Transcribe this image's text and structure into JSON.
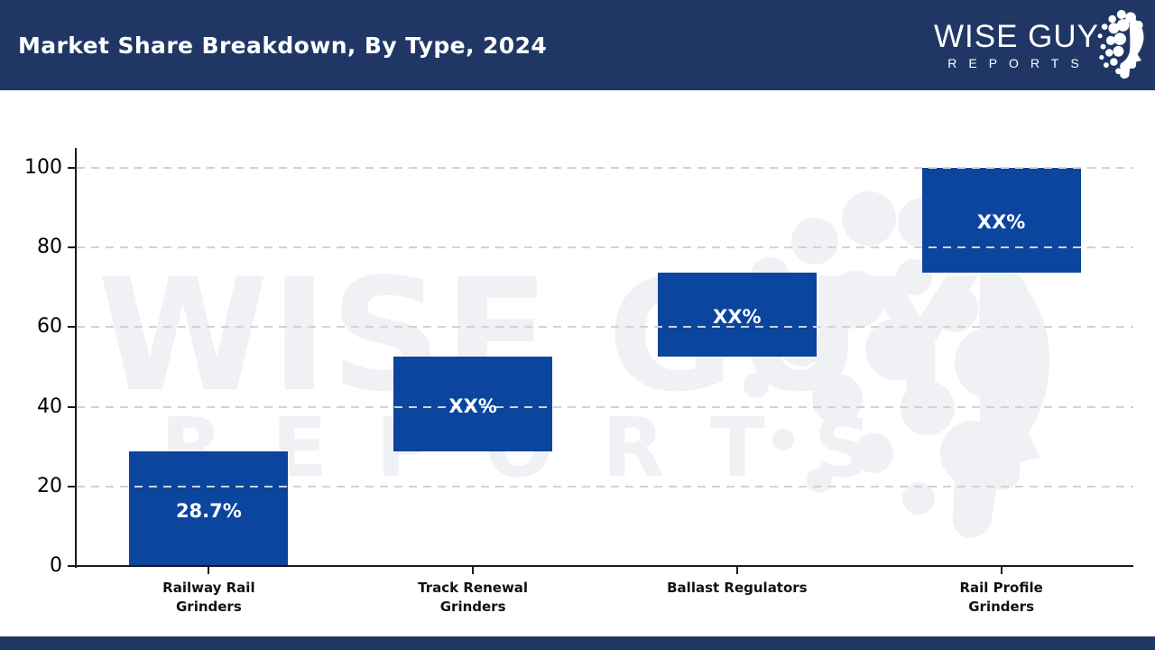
{
  "header": {
    "title": "Market Share Breakdown, By Type, 2024",
    "logo": {
      "primary": "WISE GUY",
      "secondary": "REPORTS"
    }
  },
  "watermark": {
    "primary": "WISE GUY",
    "secondary": "REPORTS"
  },
  "colors": {
    "header_bg": "#203766",
    "footer_bg": "#203766",
    "bar_fill": "#0b459e",
    "bar_label_text": "#ffffff",
    "title_text": "#ffffff",
    "axis_line": "#1a1a1a",
    "tick_label_text": "#000000",
    "gridline": "#d2d2d2",
    "watermark": "#f0f1f4"
  },
  "chart_data": {
    "type": "bar",
    "variant": "waterfall",
    "title": "Market Share Breakdown, By Type, 2024",
    "categories": [
      [
        "Railway Rail",
        "Grinders"
      ],
      [
        "Track Renewal",
        "Grinders"
      ],
      [
        "Ballast Regulators"
      ],
      [
        "Rail Profile",
        "Grinders"
      ]
    ],
    "bars": [
      {
        "category": "Railway Rail Grinders",
        "start": 0,
        "end": 28.7,
        "label": "28.7%"
      },
      {
        "category": "Track Renewal Grinders",
        "start": 28.7,
        "end": 52.5,
        "label": "XX%"
      },
      {
        "category": "Ballast Regulators",
        "start": 52.5,
        "end": 73.6,
        "label": "XX%"
      },
      {
        "category": "Rail Profile Grinders",
        "start": 73.6,
        "end": 100,
        "label": "XX%"
      }
    ],
    "ylim": [
      0,
      100
    ],
    "yticks": [
      0,
      20,
      40,
      60,
      80,
      100
    ],
    "grid": "horizontal-dashed",
    "legend": "none"
  }
}
